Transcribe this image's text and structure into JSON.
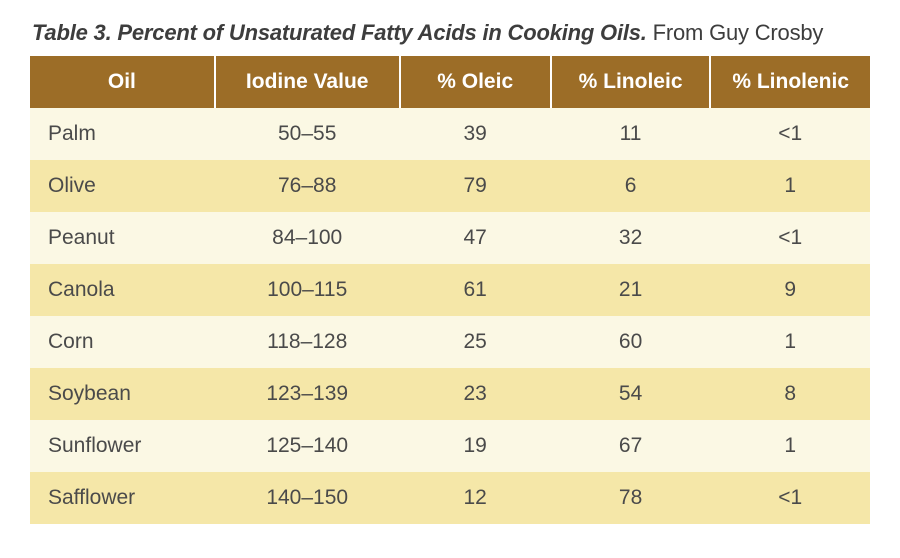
{
  "caption": {
    "title": "Table 3. Percent of Unsaturated Fatty Acids in Cooking Oils.",
    "attribution": "From Guy Crosby"
  },
  "table": {
    "type": "table",
    "columns": [
      "Oil",
      "Iodine Value",
      "% Oleic",
      "% Linoleic",
      "% Linolenic"
    ],
    "column_widths_pct": [
      22,
      22,
      18,
      19,
      19
    ],
    "column_align": [
      "left",
      "center",
      "center",
      "center",
      "center"
    ],
    "header_bg": "#9c6d27",
    "header_fg": "#ffffff",
    "header_fontsize": 21,
    "header_fontweight": 700,
    "row_bg_odd": "#fbf8e4",
    "row_bg_even": "#f5e7a8",
    "cell_fg": "#4a4a4a",
    "cell_fontsize": 21,
    "rows": [
      {
        "oil": "Palm",
        "iodine": "50–55",
        "oleic": "39",
        "linoleic": "11",
        "linolenic": "<1"
      },
      {
        "oil": "Olive",
        "iodine": "76–88",
        "oleic": "79",
        "linoleic": "6",
        "linolenic": "1"
      },
      {
        "oil": "Peanut",
        "iodine": "84–100",
        "oleic": "47",
        "linoleic": "32",
        "linolenic": "<1"
      },
      {
        "oil": "Canola",
        "iodine": "100–115",
        "oleic": "61",
        "linoleic": "21",
        "linolenic": "9"
      },
      {
        "oil": "Corn",
        "iodine": "118–128",
        "oleic": "25",
        "linoleic": "60",
        "linolenic": "1"
      },
      {
        "oil": "Soybean",
        "iodine": "123–139",
        "oleic": "23",
        "linoleic": "54",
        "linolenic": "8"
      },
      {
        "oil": "Sunflower",
        "iodine": "125–140",
        "oleic": "19",
        "linoleic": "67",
        "linolenic": "1"
      },
      {
        "oil": "Safflower",
        "iodine": "140–150",
        "oleic": "12",
        "linoleic": "78",
        "linolenic": "<1"
      }
    ]
  },
  "caption_style": {
    "title_fontsize": 22,
    "title_fontweight": 700,
    "title_fontstyle": "italic",
    "attribution_fontweight": 400,
    "color": "#3d3d3d"
  }
}
